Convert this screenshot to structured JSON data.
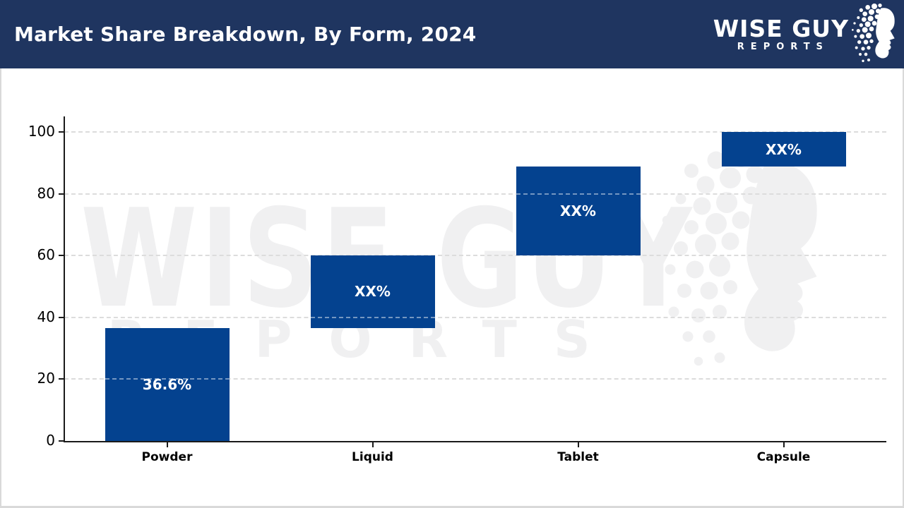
{
  "header": {
    "title": "Market Share Breakdown, By Form, 2024",
    "logo": {
      "brand": "WISE GUY",
      "sub": "REPORTS"
    }
  },
  "watermark": {
    "brand": "WISE GUY",
    "sub": "REPORTS"
  },
  "chart_data": {
    "type": "bar",
    "subtype": "waterfall",
    "title": "Market Share Breakdown, By Form, 2024",
    "categories": [
      "Powder",
      "Liquid",
      "Tablet",
      "Capsule"
    ],
    "segments": [
      {
        "category": "Powder",
        "start": 0,
        "end": 36.6,
        "label": "36.6%"
      },
      {
        "category": "Liquid",
        "start": 36.6,
        "end": 60,
        "label": "XX%"
      },
      {
        "category": "Tablet",
        "start": 60,
        "end": 88.8,
        "label": "XX%"
      },
      {
        "category": "Capsule",
        "start": 88.8,
        "end": 100,
        "label": "XX%"
      }
    ],
    "xlabel": "",
    "ylabel": "",
    "ylim": [
      0,
      105
    ],
    "yticks": [
      0,
      20,
      40,
      60,
      80,
      100
    ],
    "grid": "horizontal-dashed",
    "legend": "none",
    "colors": {
      "bar": "#04428f",
      "bar_label": "#ffffff",
      "gridline": "#dcdcdc",
      "axis": "#1a1a1a",
      "tick_label": "#000000"
    }
  },
  "colors": {
    "header_bg": "#1f3560",
    "header_text": "#ffffff",
    "page_bg": "#ffffff",
    "watermark": "#f0f0f1",
    "border": "#d9d9d9"
  }
}
